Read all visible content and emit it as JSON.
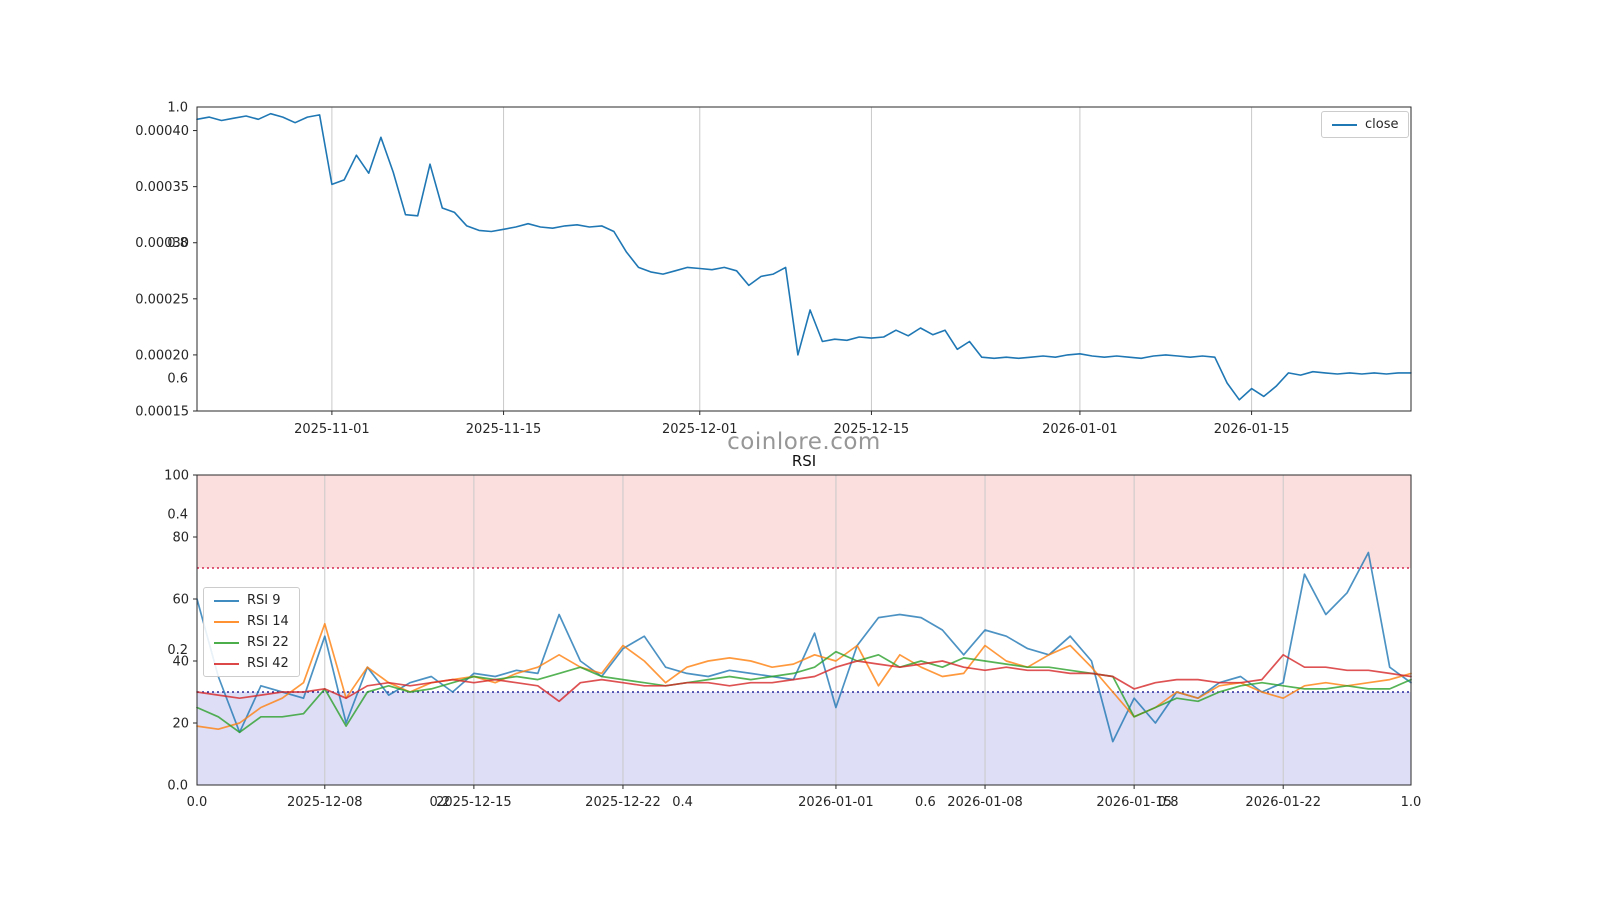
{
  "watermark": "coinlore.com",
  "colors": {
    "grid": "#c9c9c9",
    "frame": "#2a2a2a",
    "close_line": "#1f77b4",
    "rsi9_line": "#1f77b4",
    "rsi14_line": "#ff7f0e",
    "rsi22_line": "#2ca02c",
    "rsi42_line": "#d62728",
    "overbought_band": "#fbdfdf",
    "oversold_band": "#dedef6",
    "overbought_threshold": "#cc0033",
    "oversold_threshold": "#00008b",
    "watermark_color": "#979797"
  },
  "overlay_axis": {
    "y_ticks": [
      "1.0",
      "0.8",
      "0.6",
      "0.4",
      "0.2",
      "0.0"
    ],
    "x_ticks": [
      "0.0",
      "0.2",
      "0.4",
      "0.6",
      "0.8",
      "1.0"
    ]
  },
  "chart_data": [
    {
      "type": "line",
      "title": "",
      "legend_position": "upper right",
      "grid": "vertical",
      "ylim": [
        0.00015,
        0.000421
      ],
      "y_ticks": [
        0.00015,
        0.0002,
        0.00025,
        0.0003,
        0.00035,
        0.0004
      ],
      "y_tick_labels": [
        "0.00015",
        "0.00020",
        "0.00025",
        "0.00030",
        "0.00035",
        "0.00040"
      ],
      "x_tick_labels": [
        "2025-11-01",
        "2025-11-15",
        "2025-12-01",
        "2025-12-15",
        "2026-01-01",
        "2026-01-15"
      ],
      "x": [
        "2025-10-21",
        "2025-10-22",
        "2025-10-23",
        "2025-10-24",
        "2025-10-25",
        "2025-10-26",
        "2025-10-27",
        "2025-10-28",
        "2025-10-29",
        "2025-10-30",
        "2025-10-31",
        "2025-11-01",
        "2025-11-02",
        "2025-11-03",
        "2025-11-04",
        "2025-11-05",
        "2025-11-06",
        "2025-11-07",
        "2025-11-08",
        "2025-11-09",
        "2025-11-10",
        "2025-11-11",
        "2025-11-12",
        "2025-11-13",
        "2025-11-14",
        "2025-11-15",
        "2025-11-16",
        "2025-11-17",
        "2025-11-18",
        "2025-11-19",
        "2025-11-20",
        "2025-11-21",
        "2025-11-22",
        "2025-11-23",
        "2025-11-24",
        "2025-11-25",
        "2025-11-26",
        "2025-11-27",
        "2025-11-28",
        "2025-11-29",
        "2025-11-30",
        "2025-12-01",
        "2025-12-02",
        "2025-12-03",
        "2025-12-04",
        "2025-12-05",
        "2025-12-06",
        "2025-12-07",
        "2025-12-08",
        "2025-12-09",
        "2025-12-10",
        "2025-12-11",
        "2025-12-12",
        "2025-12-13",
        "2025-12-14",
        "2025-12-15",
        "2025-12-16",
        "2025-12-17",
        "2025-12-18",
        "2025-12-19",
        "2025-12-20",
        "2025-12-21",
        "2025-12-22",
        "2025-12-23",
        "2025-12-24",
        "2025-12-25",
        "2025-12-26",
        "2025-12-27",
        "2025-12-28",
        "2025-12-29",
        "2025-12-30",
        "2025-12-31",
        "2026-01-01",
        "2026-01-02",
        "2026-01-03",
        "2026-01-04",
        "2026-01-05",
        "2026-01-06",
        "2026-01-07",
        "2026-01-08",
        "2026-01-09",
        "2026-01-10",
        "2026-01-11",
        "2026-01-12",
        "2026-01-13",
        "2026-01-14",
        "2026-01-15",
        "2026-01-16",
        "2026-01-17",
        "2026-01-18",
        "2026-01-19",
        "2026-01-20",
        "2026-01-21",
        "2026-01-22",
        "2026-01-23",
        "2026-01-24",
        "2026-01-25",
        "2026-01-26",
        "2026-01-27",
        "2026-01-28"
      ],
      "series": [
        {
          "name": "close",
          "color": "#1f77b4",
          "values": [
            0.00041,
            0.000412,
            0.000409,
            0.000411,
            0.000413,
            0.00041,
            0.000415,
            0.000412,
            0.000407,
            0.000412,
            0.000414,
            0.000352,
            0.000356,
            0.000378,
            0.000362,
            0.000394,
            0.000363,
            0.000325,
            0.000324,
            0.00037,
            0.000331,
            0.000327,
            0.000315,
            0.000311,
            0.00031,
            0.000312,
            0.000314,
            0.000317,
            0.000314,
            0.000313,
            0.000315,
            0.000316,
            0.000314,
            0.000315,
            0.00031,
            0.000292,
            0.000278,
            0.000274,
            0.000272,
            0.000275,
            0.000278,
            0.000277,
            0.000276,
            0.000278,
            0.000275,
            0.000262,
            0.00027,
            0.000272,
            0.000278,
            0.0002,
            0.00024,
            0.000212,
            0.000214,
            0.000213,
            0.000216,
            0.000215,
            0.000216,
            0.000222,
            0.000217,
            0.000224,
            0.000218,
            0.000222,
            0.000205,
            0.000212,
            0.000198,
            0.000197,
            0.000198,
            0.000197,
            0.000198,
            0.000199,
            0.000198,
            0.0002,
            0.000201,
            0.000199,
            0.000198,
            0.000199,
            0.000198,
            0.000197,
            0.000199,
            0.0002,
            0.000199,
            0.000198,
            0.000199,
            0.000198,
            0.000175,
            0.00016,
            0.00017,
            0.000163,
            0.000172,
            0.000184,
            0.000182,
            0.000185,
            0.000184,
            0.000183,
            0.000184,
            0.000183,
            0.000184,
            0.000183,
            0.000184,
            0.000184
          ]
        }
      ]
    },
    {
      "type": "line",
      "title": "RSI",
      "legend_position": "center left",
      "grid": "vertical",
      "ylim": [
        0,
        100
      ],
      "y_ticks": [
        20,
        40,
        60,
        80,
        100
      ],
      "y_tick_labels": [
        "20",
        "40",
        "60",
        "80",
        "100"
      ],
      "x_tick_labels": [
        "2025-12-08",
        "2025-12-15",
        "2025-12-22",
        "2026-01-01",
        "2026-01-08",
        "2026-01-15",
        "2026-01-22"
      ],
      "bands": [
        {
          "name": "overbought-band",
          "from": 70,
          "to": 100,
          "color": "#fbdfdf"
        },
        {
          "name": "oversold-band",
          "from": 0,
          "to": 30,
          "color": "#dedef6"
        }
      ],
      "hlines": [
        {
          "name": "overbought-threshold",
          "y": 70,
          "color": "#cc0033"
        },
        {
          "name": "oversold-threshold",
          "y": 30,
          "color": "#00008b"
        }
      ],
      "x": [
        "2025-12-02",
        "2025-12-03",
        "2025-12-04",
        "2025-12-05",
        "2025-12-06",
        "2025-12-07",
        "2025-12-08",
        "2025-12-09",
        "2025-12-10",
        "2025-12-11",
        "2025-12-12",
        "2025-12-13",
        "2025-12-14",
        "2025-12-15",
        "2025-12-16",
        "2025-12-17",
        "2025-12-18",
        "2025-12-19",
        "2025-12-20",
        "2025-12-21",
        "2025-12-22",
        "2025-12-23",
        "2025-12-24",
        "2025-12-25",
        "2025-12-26",
        "2025-12-27",
        "2025-12-28",
        "2025-12-29",
        "2025-12-30",
        "2025-12-31",
        "2026-01-01",
        "2026-01-02",
        "2026-01-03",
        "2026-01-04",
        "2026-01-05",
        "2026-01-06",
        "2026-01-07",
        "2026-01-08",
        "2026-01-09",
        "2026-01-10",
        "2026-01-11",
        "2026-01-12",
        "2026-01-13",
        "2026-01-14",
        "2026-01-15",
        "2026-01-16",
        "2026-01-17",
        "2026-01-18",
        "2026-01-19",
        "2026-01-20",
        "2026-01-21",
        "2026-01-22",
        "2026-01-23",
        "2026-01-24",
        "2026-01-25",
        "2026-01-26",
        "2026-01-27",
        "2026-01-28"
      ],
      "series": [
        {
          "name": "RSI 9",
          "color": "#1f77b4",
          "values": [
            60,
            35,
            17,
            32,
            30,
            28,
            48,
            20,
            38,
            29,
            33,
            35,
            30,
            36,
            35,
            37,
            36,
            55,
            40,
            35,
            44,
            48,
            38,
            36,
            35,
            37,
            36,
            35,
            34,
            49,
            25,
            45,
            54,
            55,
            54,
            50,
            42,
            50,
            48,
            44,
            42,
            48,
            40,
            14,
            28,
            20,
            30,
            28,
            33,
            35,
            30,
            33,
            68,
            55,
            62,
            75,
            38,
            33
          ]
        },
        {
          "name": "RSI 14",
          "color": "#ff7f0e",
          "values": [
            19,
            18,
            20,
            25,
            28,
            33,
            52,
            28,
            38,
            33,
            30,
            33,
            34,
            35,
            33,
            36,
            38,
            42,
            38,
            36,
            45,
            40,
            33,
            38,
            40,
            41,
            40,
            38,
            39,
            42,
            40,
            45,
            32,
            42,
            38,
            35,
            36,
            45,
            40,
            38,
            42,
            45,
            38,
            30,
            22,
            25,
            30,
            28,
            32,
            33,
            30,
            28,
            32,
            33,
            32,
            33,
            34,
            36
          ]
        },
        {
          "name": "RSI 22",
          "color": "#2ca02c",
          "values": [
            25,
            22,
            17,
            22,
            22,
            23,
            31,
            19,
            30,
            32,
            30,
            31,
            33,
            35,
            34,
            35,
            34,
            36,
            38,
            35,
            34,
            33,
            32,
            33,
            34,
            35,
            34,
            35,
            36,
            38,
            43,
            40,
            42,
            38,
            40,
            38,
            41,
            40,
            39,
            38,
            38,
            37,
            36,
            35,
            22,
            25,
            28,
            27,
            30,
            32,
            33,
            32,
            31,
            31,
            32,
            31,
            31,
            34
          ]
        },
        {
          "name": "RSI 42",
          "color": "#d62728",
          "values": [
            30,
            29,
            28,
            29,
            30,
            30,
            31,
            28,
            32,
            33,
            32,
            33,
            34,
            33,
            34,
            33,
            32,
            27,
            33,
            34,
            33,
            32,
            32,
            33,
            33,
            32,
            33,
            33,
            34,
            35,
            38,
            40,
            39,
            38,
            39,
            40,
            38,
            37,
            38,
            37,
            37,
            36,
            36,
            35,
            31,
            33,
            34,
            34,
            33,
            33,
            34,
            42,
            38,
            38,
            37,
            37,
            36,
            35
          ]
        }
      ]
    }
  ]
}
